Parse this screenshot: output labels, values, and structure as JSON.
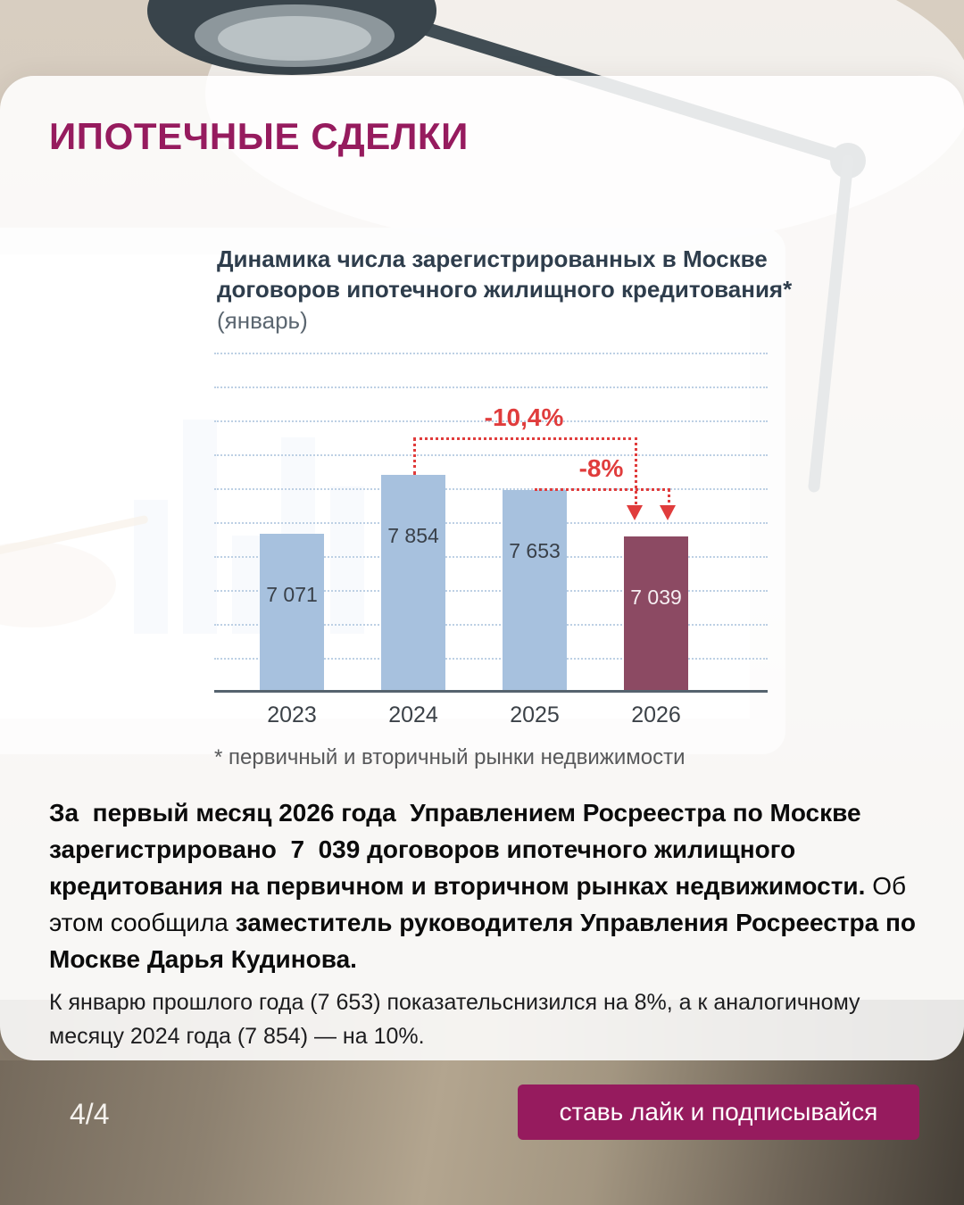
{
  "theme": {
    "accent": "#961b5e",
    "annotation_red": "#e03c3c",
    "bar_blue": "#a7c1de",
    "bar_maroon": "#8c4a63"
  },
  "page": {
    "title": "ИПОТЕЧНЫЕ СДЕЛКИ",
    "page_indicator": "4/4",
    "cta_label": "ставь лайк и подписывайся"
  },
  "chart": {
    "title_line1": "Динамика числа зарегистрированных в Москве",
    "title_line2": "договоров ипотечного жилищного кредитования*",
    "subtitle": "(январь)",
    "footnote": "* первичный и вторичный рынки недвижимости"
  },
  "chart_data": {
    "type": "bar",
    "title": "Динамика числа зарегистрированных в Москве договоров ипотечного жилищного кредитования* (январь)",
    "categories": [
      "2023",
      "2024",
      "2025",
      "2026"
    ],
    "values": [
      7071,
      7854,
      7653,
      7039
    ],
    "value_labels": [
      "7 071",
      "7 854",
      "7 653",
      "7 039"
    ],
    "ylim": [
      5000,
      9500
    ],
    "grid": "horizontal-dotted",
    "legend": "none",
    "highlight_index": 3,
    "annotations": [
      {
        "label": "-10,4%",
        "from": "2024",
        "to": "2026"
      },
      {
        "label": "-8%",
        "from": "2025",
        "to": "2026"
      }
    ]
  },
  "body": {
    "main_p1": "За  первый месяц 2026 года  Управлением Росреестра по Москве зарегистрировано  7  039 договоров ипотечного жилищного кредитования на первичном и вторичном рынках недвижимости. ",
    "main_p2": "Об этом сообщила ",
    "main_p3": "заместитель руководителя Управления Росреестра по Москве Дарья Кудинова.",
    "secondary": "К январю прошлого года (7 653) показательснизился на 8%, а к аналогичному месяцу 2024 года (7 854) — на 10%."
  }
}
